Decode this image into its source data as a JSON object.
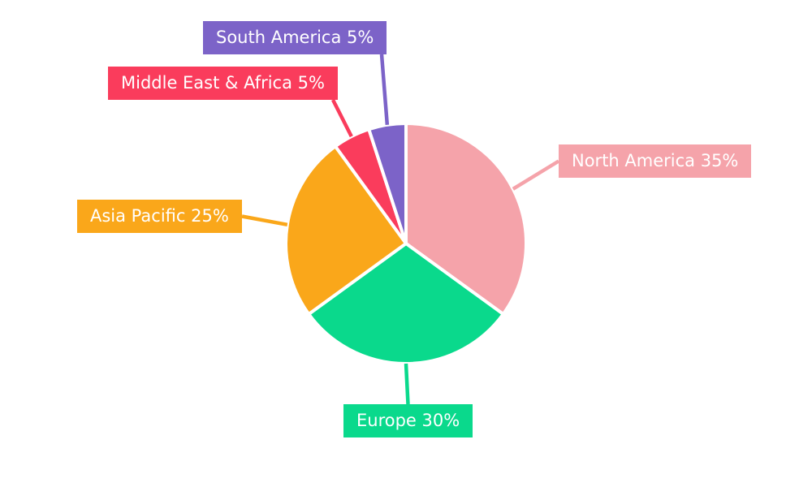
{
  "chart_data": {
    "type": "pie",
    "title": "",
    "categories": [
      "North America",
      "Europe",
      "Asia Pacific",
      "Middle East & Africa",
      "South America"
    ],
    "values": [
      35,
      30,
      25,
      5,
      5
    ],
    "unit": "%",
    "start_angle_deg": 0,
    "direction": "clockwise",
    "legend_position": "outside-callout-labels",
    "background": "#ffffff",
    "gap_color": "#ffffff",
    "label_text_color": "#ffffff",
    "slices": [
      {
        "label": "North America",
        "value": 35,
        "display": "North America 35%",
        "color": "#F5A3AA"
      },
      {
        "label": "Europe",
        "value": 30,
        "display": "Europe 30%",
        "color": "#0AD98C"
      },
      {
        "label": "Asia Pacific",
        "value": 25,
        "display": "Asia Pacific 25%",
        "color": "#FAA71A"
      },
      {
        "label": "Middle East & Africa",
        "value": 5,
        "display": "Middle East & Africa 5%",
        "color": "#FA3C5C"
      },
      {
        "label": "South America",
        "value": 5,
        "display": "South America 5%",
        "color": "#7C63C8"
      }
    ]
  }
}
